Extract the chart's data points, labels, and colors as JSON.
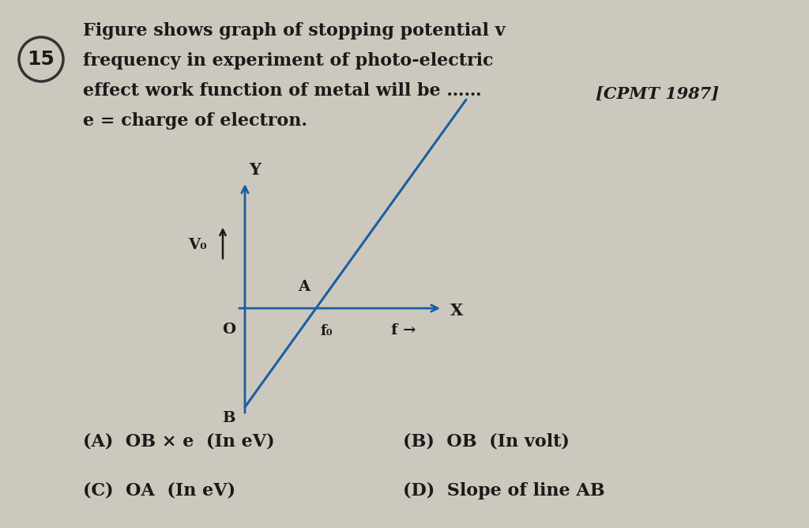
{
  "background_color": "#cdc8be",
  "line_color": "#1a5fa0",
  "text_color": "#1a1a1a",
  "title_lines": [
    "Figure shows graph of stopping potential v",
    "frequency in experiment of photo-electric",
    "effect work function of metal will be ……",
    "e = charge of electron."
  ],
  "ref_text": "[CPMT 1987]",
  "question_number": "15",
  "x_label": "X",
  "y_label": "Y",
  "v0_label": "V₀",
  "origin_label": "O",
  "point_A": "A",
  "point_f0": "f₀",
  "point_B": "B",
  "f_arrow_label": "f →",
  "options": [
    "(A)  OB × e  (In eV)",
    "(B)  OB  (In volt)",
    "(C)  OA  (In eV)",
    "(D)  Slope of line AB"
  ],
  "font_size_title": 16,
  "font_size_options": 16,
  "font_size_graph": 14
}
